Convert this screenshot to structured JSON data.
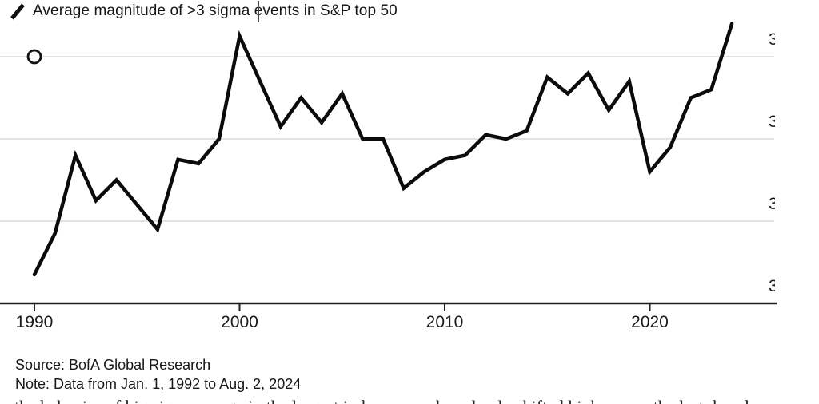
{
  "legend": {
    "marker_icon": "diagonal-line-icon",
    "label": "Average magnitude of >3 sigma events in S&P top 50"
  },
  "footer": {
    "source": "Source: BofA Global Research",
    "note": "Note: Data from Jan. 1, 1992 to Aug. 2, 2024",
    "clipped_text": "the behavior of big sigma events in the largest index names has clearly shifted higher over the last decade"
  },
  "colors": {
    "line": "#0b0b0b",
    "grid": "#d8d8d8",
    "axis": "#1f1f1f",
    "text": "#161616",
    "background": "#ffffff"
  },
  "chart_data": {
    "type": "line",
    "title": "Average magnitude of >3 sigma events in S&P top 50",
    "legend_position": "top-left",
    "grid": "horizontal",
    "x_axis": {
      "tick_years": [
        1990,
        2000,
        2010,
        2020
      ],
      "tick_labels": [
        "1990",
        "2000",
        "2010",
        "2020"
      ]
    },
    "y_axis": {
      "labels_clipped_at_right_edge": true,
      "ticks": [
        {
          "value": 3.8,
          "label_visible": "3"
        },
        {
          "value": 3.6,
          "label_visible": "3"
        },
        {
          "value": 3.4,
          "label_visible": "3"
        },
        {
          "value": 3.2,
          "label_visible": "3"
        }
      ],
      "ylim": [
        3.2,
        3.9
      ]
    },
    "series": [
      {
        "name": "Average magnitude of >3 sigma events in S&P top 50",
        "x": [
          1990,
          1991,
          1992,
          1993,
          1994,
          1995,
          1996,
          1997,
          1998,
          1999,
          2000,
          2001,
          2002,
          2003,
          2004,
          2005,
          2006,
          2007,
          2008,
          2009,
          2010,
          2011,
          2012,
          2013,
          2014,
          2015,
          2016,
          2017,
          2018,
          2019,
          2020,
          2021,
          2022,
          2023,
          2024
        ],
        "values": [
          3.27,
          3.37,
          3.56,
          3.45,
          3.5,
          3.44,
          3.38,
          3.55,
          3.54,
          3.6,
          3.85,
          3.74,
          3.63,
          3.7,
          3.64,
          3.71,
          3.6,
          3.6,
          3.48,
          3.52,
          3.55,
          3.56,
          3.61,
          3.6,
          3.62,
          3.75,
          3.71,
          3.76,
          3.67,
          3.74,
          3.52,
          3.58,
          3.7,
          3.72,
          3.88
        ]
      }
    ],
    "annotations": [
      {
        "shape": "open-circle",
        "year": 1990,
        "value": 3.8
      }
    ]
  }
}
